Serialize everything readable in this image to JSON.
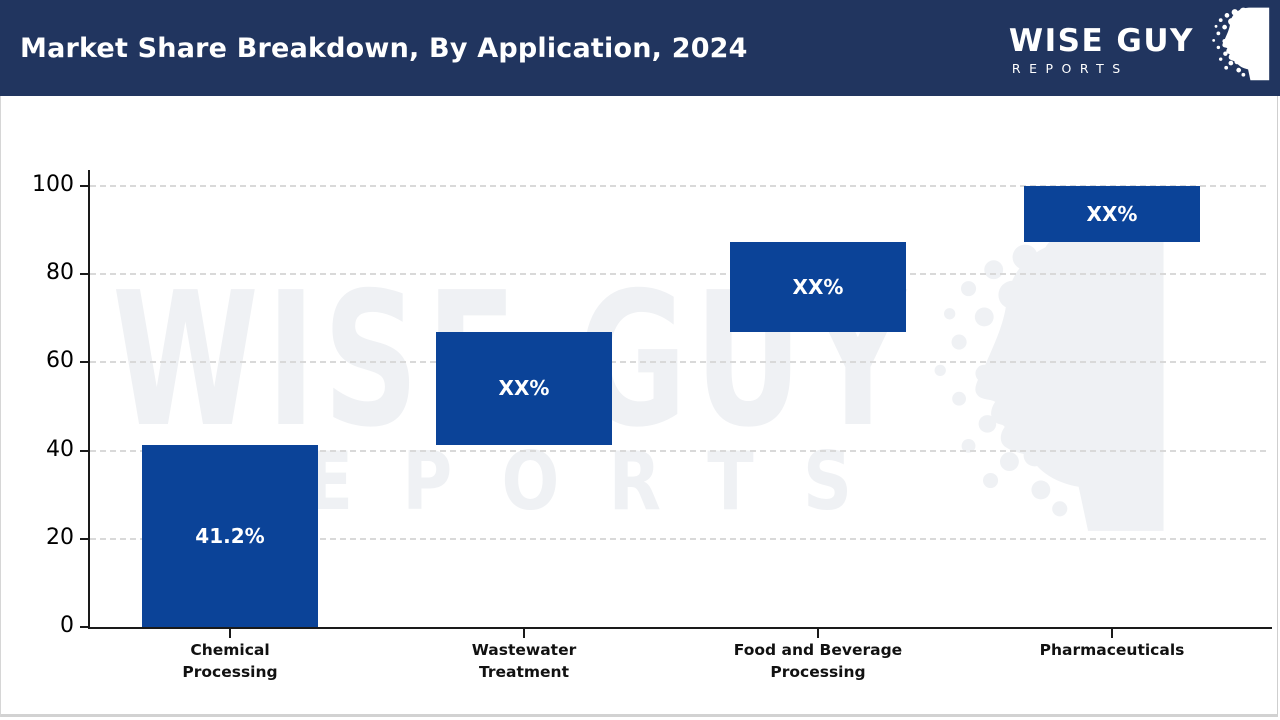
{
  "header": {
    "title": "Market Share Breakdown, By Application, 2024",
    "bg_color": "#21355f",
    "logo": {
      "line1": "WISE GUY",
      "line2": "REPORTS"
    }
  },
  "watermark": {
    "line1": "WISE GUY",
    "line2": "REPORTS"
  },
  "chart_data": {
    "type": "bar",
    "subtype": "waterfall",
    "title": "Market Share Breakdown, By Application, 2024",
    "xlabel": "",
    "ylabel": "",
    "ylim": [
      0,
      104
    ],
    "yticks": [
      0,
      20,
      40,
      60,
      80,
      100
    ],
    "ytick_labels": [
      "0",
      "20",
      "40",
      "60",
      "80",
      "100"
    ],
    "grid": "horizontal-dashed",
    "legend": "none",
    "bar_color": "#0b4398",
    "categories": [
      "Chemical Processing",
      "Wastewater Treatment",
      "Food and Beverage Processing",
      "Pharmaceuticals"
    ],
    "category_lines": [
      [
        "Chemical",
        "Processing"
      ],
      [
        "Wastewater",
        "Treatment"
      ],
      [
        "Food and Beverage",
        "Processing"
      ],
      [
        "Pharmaceuticals"
      ]
    ],
    "segments": [
      {
        "category": "Chemical Processing",
        "start": 0,
        "end": 41.2,
        "label": "41.2%"
      },
      {
        "category": "Wastewater Treatment",
        "start": 41.2,
        "end": 67.0,
        "label": "XX%"
      },
      {
        "category": "Food and Beverage Processing",
        "start": 67.0,
        "end": 87.3,
        "label": "XX%"
      },
      {
        "category": "Pharmaceuticals",
        "start": 87.3,
        "end": 100.0,
        "label": "XX%"
      }
    ],
    "colors": {
      "axis": "#1a1a1a",
      "gridline": "#d9d9d9",
      "bar_label_text": "#ffffff",
      "watermark": "#eff1f4"
    }
  }
}
